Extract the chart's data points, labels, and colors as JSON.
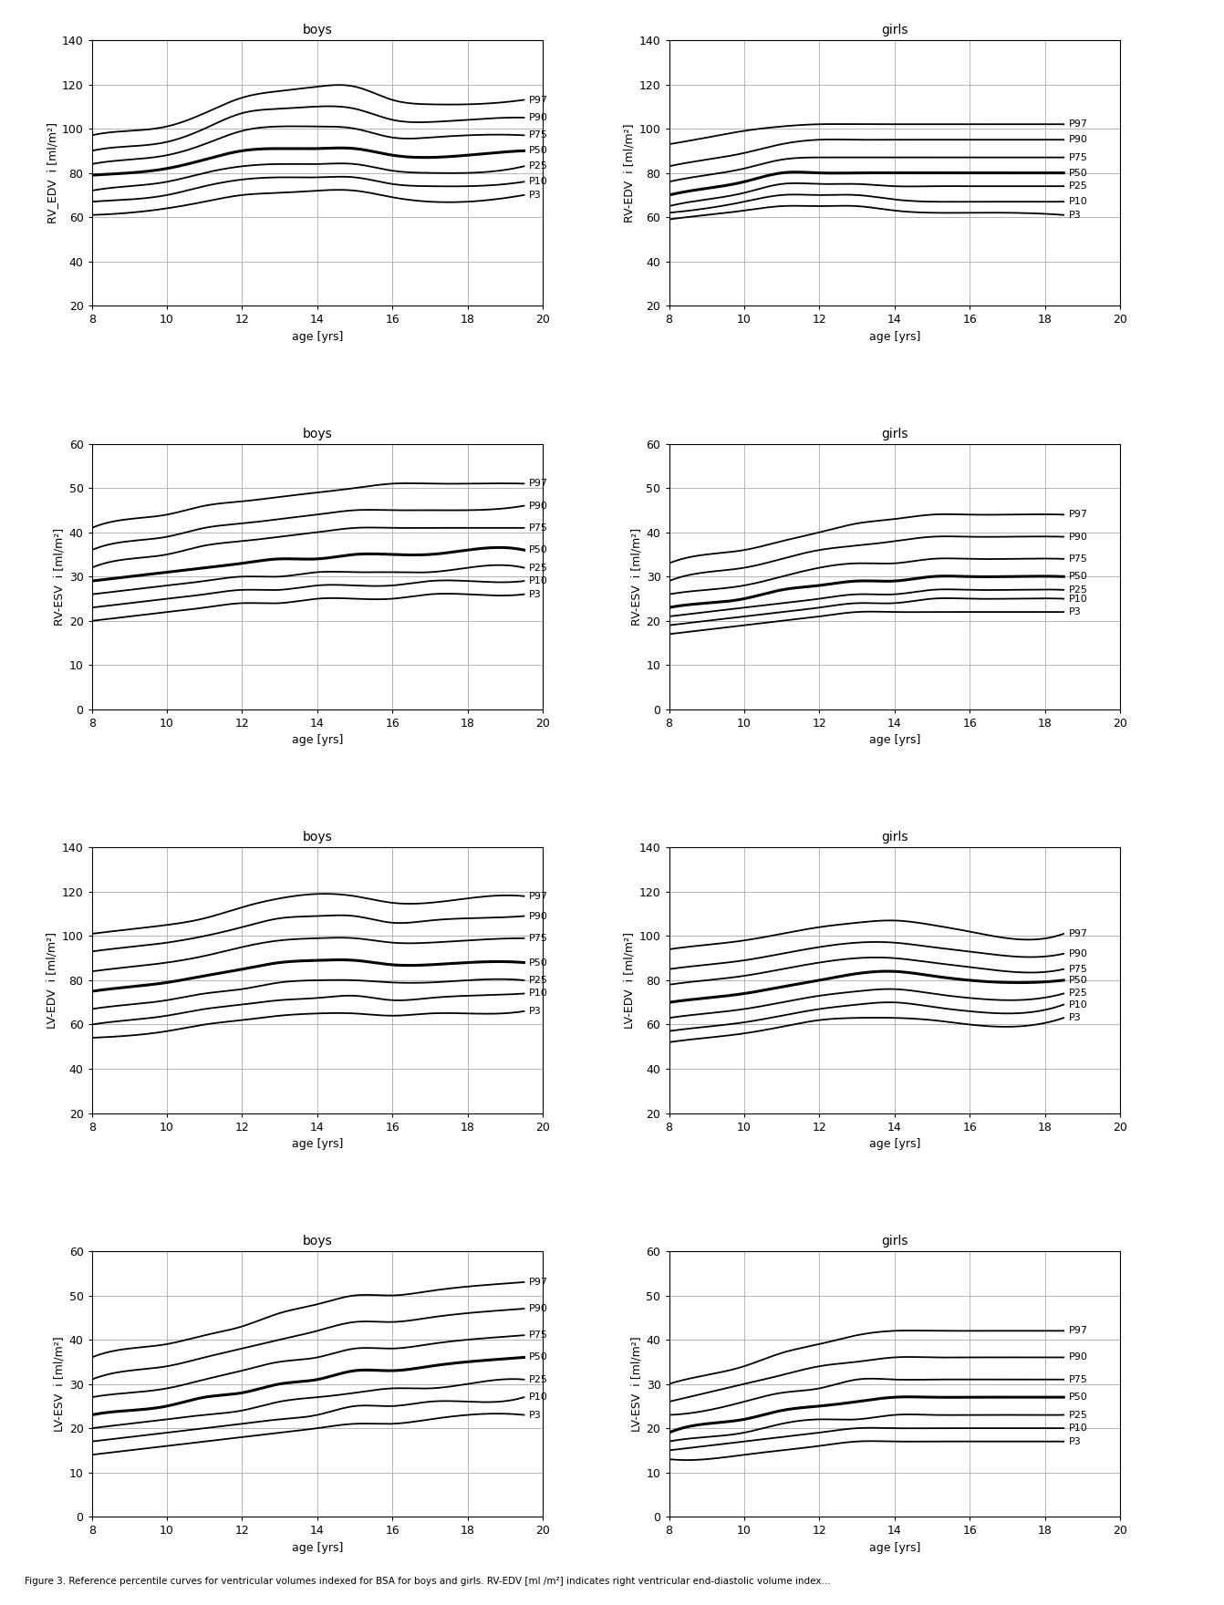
{
  "background_color": "#ffffff",
  "title_fontsize": 10,
  "label_fontsize": 9,
  "tick_fontsize": 9,
  "percentile_labels": [
    "P97",
    "P90",
    "P75",
    "P50",
    "P25",
    "P10",
    "P3"
  ],
  "age_boys": [
    8,
    9,
    10,
    11,
    12,
    13,
    14,
    15,
    16,
    17,
    18,
    19.5
  ],
  "age_girls": [
    8,
    9,
    10,
    11,
    12,
    13,
    14,
    15,
    16,
    17,
    18.5
  ],
  "rv_edv_boys": {
    "P97": [
      97,
      99,
      101,
      107,
      114,
      117,
      119,
      119,
      113,
      111,
      111,
      113
    ],
    "P90": [
      90,
      92,
      94,
      100,
      107,
      109,
      110,
      109,
      104,
      103,
      104,
      105
    ],
    "P75": [
      84,
      86,
      88,
      93,
      99,
      101,
      101,
      100,
      96,
      96,
      97,
      97
    ],
    "P50": [
      79,
      80,
      82,
      86,
      90,
      91,
      91,
      91,
      88,
      87,
      88,
      90
    ],
    "P25": [
      72,
      74,
      76,
      80,
      83,
      84,
      84,
      84,
      81,
      80,
      80,
      83
    ],
    "P10": [
      67,
      68,
      70,
      74,
      77,
      78,
      78,
      78,
      75,
      74,
      74,
      76
    ],
    "P3": [
      61,
      62,
      64,
      67,
      70,
      71,
      72,
      72,
      69,
      67,
      67,
      70
    ]
  },
  "rv_edv_girls": {
    "P97": [
      93,
      96,
      99,
      101,
      102,
      102,
      102,
      102,
      102,
      102,
      102
    ],
    "P90": [
      83,
      86,
      89,
      93,
      95,
      95,
      95,
      95,
      95,
      95,
      95
    ],
    "P75": [
      76,
      79,
      82,
      86,
      87,
      87,
      87,
      87,
      87,
      87,
      87
    ],
    "P50": [
      70,
      73,
      76,
      80,
      80,
      80,
      80,
      80,
      80,
      80,
      80
    ],
    "P25": [
      65,
      68,
      71,
      75,
      75,
      75,
      74,
      74,
      74,
      74,
      74
    ],
    "P10": [
      62,
      64,
      67,
      70,
      70,
      70,
      68,
      67,
      67,
      67,
      67
    ],
    "P3": [
      59,
      61,
      63,
      65,
      65,
      65,
      63,
      62,
      62,
      62,
      61
    ]
  },
  "rv_esv_boys": {
    "P97": [
      41,
      43,
      44,
      46,
      47,
      48,
      49,
      50,
      51,
      51,
      51,
      51
    ],
    "P90": [
      36,
      38,
      39,
      41,
      42,
      43,
      44,
      45,
      45,
      45,
      45,
      46
    ],
    "P75": [
      32,
      34,
      35,
      37,
      38,
      39,
      40,
      41,
      41,
      41,
      41,
      41
    ],
    "P50": [
      29,
      30,
      31,
      32,
      33,
      34,
      34,
      35,
      35,
      35,
      36,
      36
    ],
    "P25": [
      26,
      27,
      28,
      29,
      30,
      30,
      31,
      31,
      31,
      31,
      32,
      32
    ],
    "P10": [
      23,
      24,
      25,
      26,
      27,
      27,
      28,
      28,
      28,
      29,
      29,
      29
    ],
    "P3": [
      20,
      21,
      22,
      23,
      24,
      24,
      25,
      25,
      25,
      26,
      26,
      26
    ]
  },
  "rv_esv_girls": {
    "P97": [
      33,
      35,
      36,
      38,
      40,
      42,
      43,
      44,
      44,
      44,
      44
    ],
    "P90": [
      29,
      31,
      32,
      34,
      36,
      37,
      38,
      39,
      39,
      39,
      39
    ],
    "P75": [
      26,
      27,
      28,
      30,
      32,
      33,
      33,
      34,
      34,
      34,
      34
    ],
    "P50": [
      23,
      24,
      25,
      27,
      28,
      29,
      29,
      30,
      30,
      30,
      30
    ],
    "P25": [
      21,
      22,
      23,
      24,
      25,
      26,
      26,
      27,
      27,
      27,
      27
    ],
    "P10": [
      19,
      20,
      21,
      22,
      23,
      24,
      24,
      25,
      25,
      25,
      25
    ],
    "P3": [
      17,
      18,
      19,
      20,
      21,
      22,
      22,
      22,
      22,
      22,
      22
    ]
  },
  "lv_edv_boys": {
    "P97": [
      101,
      103,
      105,
      108,
      113,
      117,
      119,
      118,
      115,
      115,
      117,
      118
    ],
    "P90": [
      93,
      95,
      97,
      100,
      104,
      108,
      109,
      109,
      106,
      107,
      108,
      109
    ],
    "P75": [
      84,
      86,
      88,
      91,
      95,
      98,
      99,
      99,
      97,
      97,
      98,
      99
    ],
    "P50": [
      75,
      77,
      79,
      82,
      85,
      88,
      89,
      89,
      87,
      87,
      88,
      88
    ],
    "P25": [
      67,
      69,
      71,
      74,
      76,
      79,
      80,
      80,
      79,
      79,
      80,
      80
    ],
    "P10": [
      60,
      62,
      64,
      67,
      69,
      71,
      72,
      73,
      71,
      72,
      73,
      74
    ],
    "P3": [
      54,
      55,
      57,
      60,
      62,
      64,
      65,
      65,
      64,
      65,
      65,
      66
    ]
  },
  "lv_edv_girls": {
    "P97": [
      94,
      96,
      98,
      101,
      104,
      106,
      107,
      105,
      102,
      99,
      101
    ],
    "P90": [
      85,
      87,
      89,
      92,
      95,
      97,
      97,
      95,
      93,
      91,
      92
    ],
    "P75": [
      78,
      80,
      82,
      85,
      88,
      90,
      90,
      88,
      86,
      84,
      85
    ],
    "P50": [
      70,
      72,
      74,
      77,
      80,
      83,
      84,
      82,
      80,
      79,
      80
    ],
    "P25": [
      63,
      65,
      67,
      70,
      73,
      75,
      76,
      74,
      72,
      71,
      74
    ],
    "P10": [
      57,
      59,
      61,
      64,
      67,
      69,
      70,
      68,
      66,
      65,
      69
    ],
    "P3": [
      52,
      54,
      56,
      59,
      62,
      63,
      63,
      62,
      60,
      59,
      63
    ]
  },
  "lv_esv_boys": {
    "P97": [
      36,
      38,
      39,
      41,
      43,
      46,
      48,
      50,
      50,
      51,
      52,
      53
    ],
    "P90": [
      31,
      33,
      34,
      36,
      38,
      40,
      42,
      44,
      44,
      45,
      46,
      47
    ],
    "P75": [
      27,
      28,
      29,
      31,
      33,
      35,
      36,
      38,
      38,
      39,
      40,
      41
    ],
    "P50": [
      23,
      24,
      25,
      27,
      28,
      30,
      31,
      33,
      33,
      34,
      35,
      36
    ],
    "P25": [
      20,
      21,
      22,
      23,
      24,
      26,
      27,
      28,
      29,
      29,
      30,
      31
    ],
    "P10": [
      17,
      18,
      19,
      20,
      21,
      22,
      23,
      25,
      25,
      26,
      26,
      27
    ],
    "P3": [
      14,
      15,
      16,
      17,
      18,
      19,
      20,
      21,
      21,
      22,
      23,
      23
    ]
  },
  "lv_esv_girls": {
    "P97": [
      30,
      32,
      34,
      37,
      39,
      41,
      42,
      42,
      42,
      42,
      42
    ],
    "P90": [
      26,
      28,
      30,
      32,
      34,
      35,
      36,
      36,
      36,
      36,
      36
    ],
    "P75": [
      23,
      24,
      26,
      28,
      29,
      31,
      31,
      31,
      31,
      31,
      31
    ],
    "P50": [
      19,
      21,
      22,
      24,
      25,
      26,
      27,
      27,
      27,
      27,
      27
    ],
    "P25": [
      17,
      18,
      19,
      21,
      22,
      22,
      23,
      23,
      23,
      23,
      23
    ],
    "P10": [
      15,
      16,
      17,
      18,
      19,
      20,
      20,
      20,
      20,
      20,
      20
    ],
    "P3": [
      13,
      13,
      14,
      15,
      16,
      17,
      17,
      17,
      17,
      17,
      17
    ]
  },
  "ylims": {
    "rv_edv": [
      20,
      140
    ],
    "rv_esv": [
      0,
      60
    ],
    "lv_edv": [
      20,
      140
    ],
    "lv_esv": [
      0,
      60
    ]
  },
  "yticks": {
    "rv_edv": [
      20,
      40,
      60,
      80,
      100,
      120,
      140
    ],
    "rv_esv": [
      0,
      10,
      20,
      30,
      40,
      50,
      60
    ],
    "lv_edv": [
      20,
      40,
      60,
      80,
      100,
      120,
      140
    ],
    "lv_esv": [
      0,
      10,
      20,
      30,
      40,
      50,
      60
    ]
  },
  "ylabels": {
    "rv_edv_boys": "RV_EDV  i [ml/m²]",
    "rv_edv_girls": "RV-EDV  i [ml/m²]",
    "rv_esv_boys": "RV-ESV  i [ml/m²]",
    "rv_esv_girls": "RV-ESV  i [ml/m²]",
    "lv_edv_boys": "LV-EDV  i [ml/m²]",
    "lv_edv_girls": "LV-EDV  i [ml/m²]",
    "lv_esv_boys": "LV-ESV  i [ml/m²]",
    "lv_esv_girls": "LV-ESV  i [ml/m²]"
  },
  "caption": "Figure 3. Reference percentile curves for ventricular volumes indexed for BSA for boys and girls. RV-EDV [ml /m²] indicates right ventricular end-diastolic volume index..."
}
